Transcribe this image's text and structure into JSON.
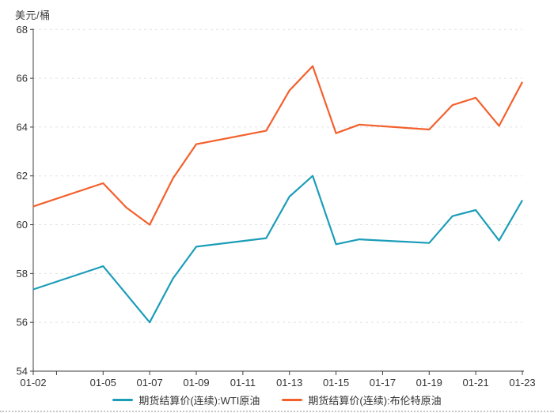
{
  "chart_data": {
    "type": "line",
    "title": "",
    "ylabel_unit": "美元/桶",
    "x": [
      "01-02",
      "01-05",
      "01-06",
      "01-07",
      "01-08",
      "01-09",
      "01-12",
      "01-13",
      "01-14",
      "01-15",
      "01-16",
      "01-19",
      "01-20",
      "01-21",
      "01-22",
      "01-23"
    ],
    "x_day_offsets": [
      0,
      3,
      4,
      5,
      6,
      7,
      10,
      11,
      12,
      13,
      14,
      17,
      18,
      19,
      20,
      21
    ],
    "series": [
      {
        "name": "期货结算价(连续):WTI原油",
        "color": "#1b9db8",
        "values": [
          57.35,
          58.3,
          57.15,
          56.0,
          57.8,
          59.1,
          59.45,
          61.15,
          62.0,
          59.2,
          59.4,
          59.25,
          60.35,
          60.6,
          59.35,
          61.0
        ]
      },
      {
        "name": "期货结算价(连续):布伦特原油",
        "color": "#f4602c",
        "values": [
          60.75,
          61.7,
          60.7,
          60.0,
          61.9,
          63.3,
          63.85,
          65.5,
          66.5,
          63.75,
          64.1,
          63.9,
          64.9,
          65.2,
          64.05,
          65.85
        ]
      }
    ],
    "ylim": [
      54,
      68
    ],
    "y_ticks": [
      54,
      56,
      58,
      60,
      62,
      64,
      66,
      68
    ],
    "x_tick_labels": [
      {
        "label": "01-02",
        "day": 0
      },
      {
        "label": "01-05",
        "day": 3
      },
      {
        "label": "01-07",
        "day": 5
      },
      {
        "label": "01-09",
        "day": 7
      },
      {
        "label": "01-11",
        "day": 9
      },
      {
        "label": "01-13",
        "day": 11
      },
      {
        "label": "01-15",
        "day": 13
      },
      {
        "label": "01-17",
        "day": 15
      },
      {
        "label": "01-19",
        "day": 17
      },
      {
        "label": "01-21",
        "day": 19
      },
      {
        "label": "01-23",
        "day": 21
      }
    ],
    "x_minor_tick_days": [
      1
    ],
    "grid": "horizontal-dashed",
    "legend_position": "bottom-center"
  },
  "colors": {
    "axis": "#3d3d3d",
    "grid": "#e2e2e2",
    "tick_text": "#333333",
    "background": "#ffffff"
  }
}
